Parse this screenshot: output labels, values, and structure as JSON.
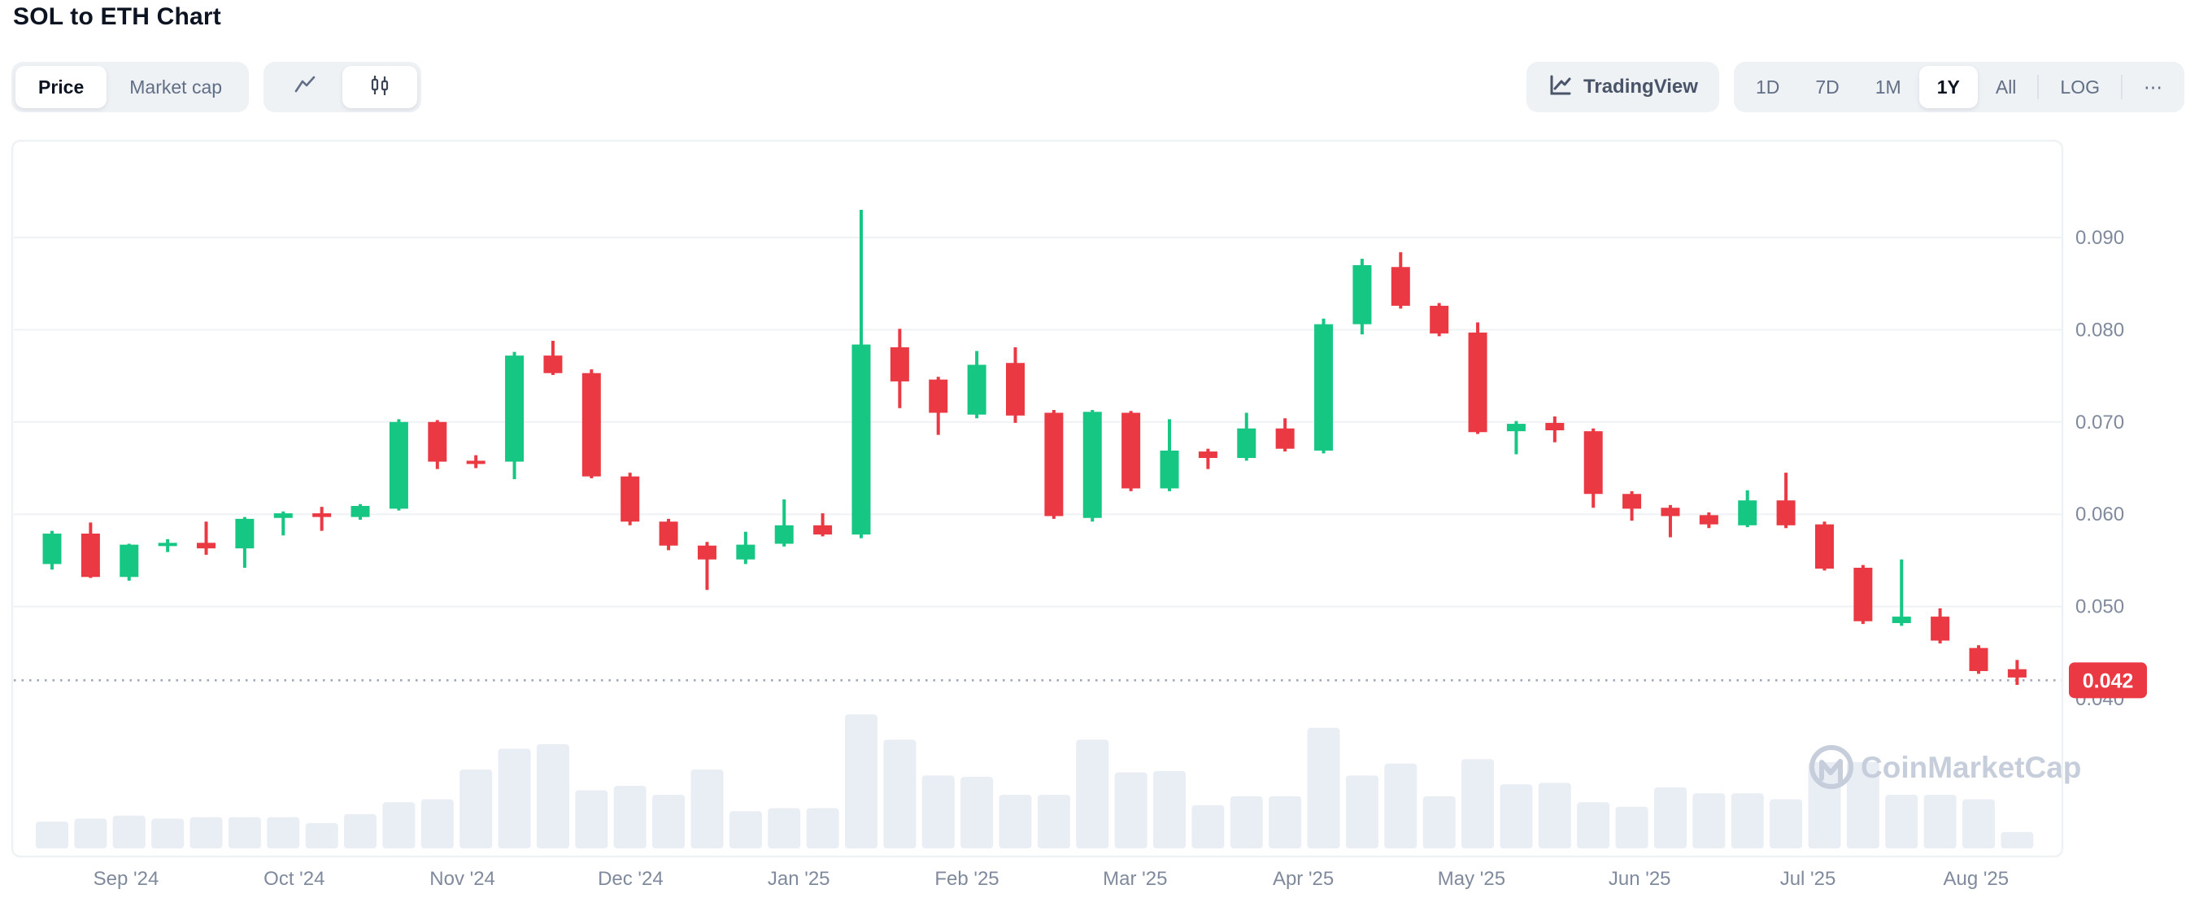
{
  "header": {
    "title": "SOL to ETH Chart"
  },
  "toolbar": {
    "metric_tabs": [
      {
        "label": "Price",
        "active": true
      },
      {
        "label": "Market cap",
        "active": false
      }
    ],
    "chart_type_options": [
      {
        "name": "line-chart-icon",
        "active": false
      },
      {
        "name": "candlestick-icon",
        "active": true
      }
    ],
    "tradingview_label": "TradingView",
    "tradingview_icon": "tradingview-logo-icon",
    "ranges": [
      {
        "label": "1D",
        "active": false
      },
      {
        "label": "7D",
        "active": false
      },
      {
        "label": "1M",
        "active": false
      },
      {
        "label": "1Y",
        "active": true
      },
      {
        "label": "All",
        "active": false,
        "divider_after": true
      },
      {
        "label": "LOG",
        "active": false,
        "divider_after": true
      },
      {
        "label": "⋯",
        "active": false,
        "name": "more-options"
      }
    ]
  },
  "watermark": {
    "text": "CoinMarketCap",
    "icon": "coinmarketcap-logo-icon"
  },
  "colors": {
    "up": "#16c784",
    "down": "#ea3943",
    "grid": "#eff2f5",
    "axis_text": "#808a9d",
    "volume": "#e9edf4",
    "dotted": "#9aa4b8",
    "badge_bg": "#ea3943",
    "badge_text": "#ffffff",
    "watermark": "#c6cddb"
  },
  "chart_data": {
    "type": "candlestick",
    "title": "SOL to ETH Chart",
    "interval": "weekly",
    "xlabel": "",
    "ylabel": "SOL price in ETH",
    "ylim": [
      0.04,
      0.0935
    ],
    "grid": "horizontal",
    "legend_position": "none",
    "last_price_value": 0.042,
    "last_price_label": "0.042",
    "y_axis": {
      "ticks": [
        {
          "label": "0.090",
          "value": 0.09,
          "grid": true
        },
        {
          "label": "0.080",
          "value": 0.08,
          "grid": true
        },
        {
          "label": "0.070",
          "value": 0.07,
          "grid": true
        },
        {
          "label": "0.060",
          "value": 0.06,
          "grid": true
        },
        {
          "label": "0.050",
          "value": 0.05,
          "grid": true
        },
        {
          "label": "0.040",
          "value": 0.04,
          "grid": false
        }
      ]
    },
    "x_axis": {
      "labels": [
        "Sep '24",
        "Oct '24",
        "Nov '24",
        "Dec '24",
        "Jan '25",
        "Feb '25",
        "Mar '25",
        "Apr '25",
        "May '25",
        "Jun '25",
        "Jul '25",
        "Aug '25"
      ]
    },
    "series_note": "candles = [open, high, low, close, relative_volume] per week",
    "candles": [
      [
        0.0546,
        0.0582,
        0.054,
        0.0579,
        0.18
      ],
      [
        0.0579,
        0.0591,
        0.0531,
        0.0532,
        0.2
      ],
      [
        0.0532,
        0.0568,
        0.0528,
        0.0567,
        0.22
      ],
      [
        0.0566,
        0.0573,
        0.0559,
        0.0569,
        0.2
      ],
      [
        0.0569,
        0.0592,
        0.0556,
        0.0563,
        0.21
      ],
      [
        0.0563,
        0.0597,
        0.0542,
        0.0595,
        0.21
      ],
      [
        0.0596,
        0.0603,
        0.0577,
        0.0601,
        0.21
      ],
      [
        0.0601,
        0.0608,
        0.0582,
        0.0597,
        0.17
      ],
      [
        0.0597,
        0.0611,
        0.0594,
        0.0609,
        0.23
      ],
      [
        0.0606,
        0.0703,
        0.0604,
        0.07,
        0.31
      ],
      [
        0.07,
        0.0702,
        0.0649,
        0.0657,
        0.33
      ],
      [
        0.0658,
        0.0664,
        0.065,
        0.0656,
        0.53
      ],
      [
        0.0657,
        0.0776,
        0.0638,
        0.0772,
        0.67
      ],
      [
        0.0772,
        0.0788,
        0.0751,
        0.0753,
        0.7
      ],
      [
        0.0753,
        0.0757,
        0.0639,
        0.0641,
        0.39
      ],
      [
        0.0641,
        0.0645,
        0.0588,
        0.0592,
        0.42
      ],
      [
        0.0592,
        0.0595,
        0.0561,
        0.0566,
        0.36
      ],
      [
        0.0566,
        0.057,
        0.0518,
        0.0551,
        0.53
      ],
      [
        0.0551,
        0.0581,
        0.0546,
        0.0567,
        0.25
      ],
      [
        0.0568,
        0.0616,
        0.0565,
        0.0588,
        0.27
      ],
      [
        0.0588,
        0.0601,
        0.0576,
        0.0578,
        0.27
      ],
      [
        0.0578,
        0.093,
        0.0574,
        0.0784,
        0.9
      ],
      [
        0.0781,
        0.0801,
        0.0715,
        0.0744,
        0.73
      ],
      [
        0.0746,
        0.0749,
        0.0686,
        0.071,
        0.49
      ],
      [
        0.0708,
        0.0777,
        0.0704,
        0.0762,
        0.48
      ],
      [
        0.0764,
        0.0781,
        0.0699,
        0.0707,
        0.36
      ],
      [
        0.071,
        0.0713,
        0.0595,
        0.0598,
        0.36
      ],
      [
        0.0596,
        0.0713,
        0.0592,
        0.0711,
        0.73
      ],
      [
        0.071,
        0.0712,
        0.0625,
        0.0628,
        0.51
      ],
      [
        0.0628,
        0.0703,
        0.0625,
        0.0669,
        0.52
      ],
      [
        0.0668,
        0.0671,
        0.0649,
        0.0661,
        0.29
      ],
      [
        0.0661,
        0.071,
        0.0658,
        0.0693,
        0.35
      ],
      [
        0.0693,
        0.0704,
        0.0668,
        0.0671,
        0.35
      ],
      [
        0.0669,
        0.0812,
        0.0666,
        0.0806,
        0.81
      ],
      [
        0.0806,
        0.0877,
        0.0795,
        0.087,
        0.49
      ],
      [
        0.0868,
        0.0884,
        0.0823,
        0.0826,
        0.57
      ],
      [
        0.0826,
        0.0829,
        0.0793,
        0.0796,
        0.35
      ],
      [
        0.0797,
        0.0808,
        0.0687,
        0.0689,
        0.6
      ],
      [
        0.069,
        0.0701,
        0.0665,
        0.0698,
        0.43
      ],
      [
        0.0699,
        0.0706,
        0.0678,
        0.0691,
        0.44
      ],
      [
        0.069,
        0.0693,
        0.0607,
        0.0622,
        0.31
      ],
      [
        0.0622,
        0.0625,
        0.0593,
        0.0606,
        0.28
      ],
      [
        0.0607,
        0.061,
        0.0575,
        0.0598,
        0.41
      ],
      [
        0.0599,
        0.0602,
        0.0585,
        0.0589,
        0.37
      ],
      [
        0.0588,
        0.0626,
        0.0586,
        0.0615,
        0.37
      ],
      [
        0.0615,
        0.0645,
        0.0585,
        0.0588,
        0.33
      ],
      [
        0.0589,
        0.0592,
        0.0539,
        0.0541,
        0.58
      ],
      [
        0.0542,
        0.0545,
        0.0481,
        0.0484,
        0.58
      ],
      [
        0.0482,
        0.0551,
        0.0479,
        0.0489,
        0.36
      ],
      [
        0.0489,
        0.0498,
        0.046,
        0.0463,
        0.36
      ],
      [
        0.0455,
        0.0458,
        0.0427,
        0.043,
        0.33
      ],
      [
        0.0432,
        0.0442,
        0.0415,
        0.0423,
        0.11
      ]
    ]
  }
}
